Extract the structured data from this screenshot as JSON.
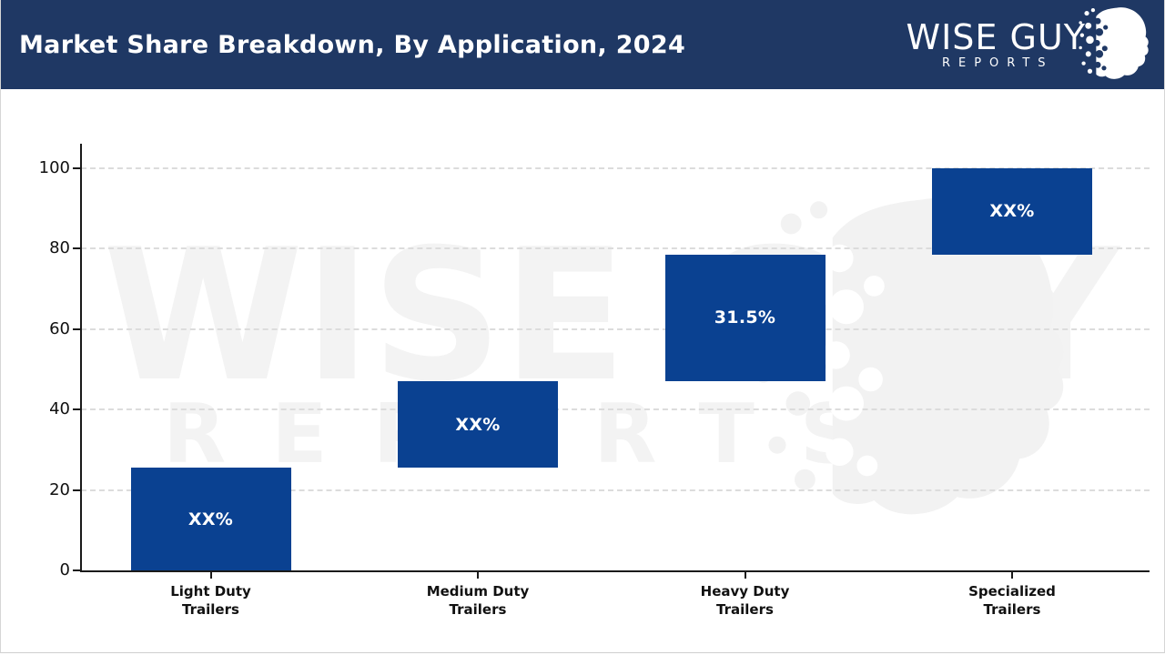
{
  "header": {
    "title": "Market Share Breakdown, By Application, 2024",
    "logo": {
      "line1": "WISE GUY",
      "line2": "REPORTS"
    }
  },
  "watermark": {
    "line1": "WISE GUY",
    "line2": "REPORTS"
  },
  "colors": {
    "header_bg": "#1f3864",
    "bar": "#0a4191",
    "bar_label": "#ffffff",
    "grid": "#dcdcdc",
    "axis": "#1a1a1a",
    "watermark": "#f3f3f3"
  },
  "chart_data": {
    "type": "bar",
    "variant": "floating-waterfall",
    "title": "Market Share Breakdown, By Application, 2024",
    "categories": [
      "Light Duty Trailers",
      "Medium Duty Trailers",
      "Heavy Duty Trailers",
      "Specialized Trailers"
    ],
    "category_lines": [
      [
        "Light Duty",
        "Trailers"
      ],
      [
        "Medium Duty",
        "Trailers"
      ],
      [
        "Heavy Duty",
        "Trailers"
      ],
      [
        "Specialized",
        "Trailers"
      ]
    ],
    "segments": [
      {
        "category": "Light Duty Trailers",
        "from": 0,
        "to": 25.5,
        "label": "XX%"
      },
      {
        "category": "Medium Duty Trailers",
        "from": 25.5,
        "to": 47,
        "label": "XX%"
      },
      {
        "category": "Heavy Duty Trailers",
        "from": 47,
        "to": 78.5,
        "label": "31.5%"
      },
      {
        "category": "Specialized Trailers",
        "from": 78.5,
        "to": 100,
        "label": "XX%"
      }
    ],
    "yticks": [
      0,
      20,
      40,
      60,
      80,
      100
    ],
    "ylim": [
      0,
      106
    ],
    "xlabel": "",
    "ylabel": "",
    "grid": "dashed-horizontal",
    "legend": "none",
    "bar_color": "#0a4191",
    "bar_label_color": "#ffffff"
  }
}
